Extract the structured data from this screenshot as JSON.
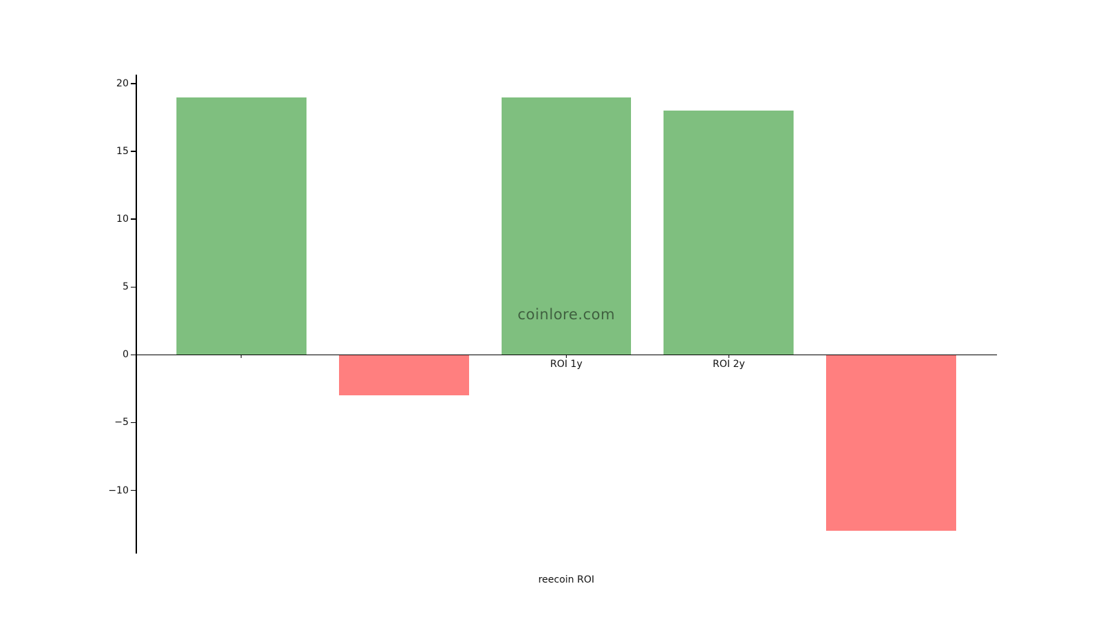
{
  "page": {
    "background": "#ffffff"
  },
  "chart_data": {
    "type": "bar",
    "title": "",
    "xlabel": "reecoin ROI",
    "ylabel": "",
    "watermark": "coinlore.com",
    "categories": [
      "",
      "",
      "ROI 1y",
      "ROI 2y",
      ""
    ],
    "values": [
      19,
      -3,
      19,
      18,
      -13
    ],
    "series": [
      {
        "name": "reecoin ROI",
        "values": [
          19,
          -3,
          19,
          18,
          -13
        ]
      }
    ],
    "bar_colors": {
      "positive": "#7fbf7f",
      "negative": "#ff7f7f"
    },
    "yticks": [
      20,
      15,
      10,
      5,
      0,
      -5,
      -10
    ],
    "ylim": [
      -14.66,
      20.66
    ],
    "xlim": [
      -0.65,
      4.65
    ],
    "bar_width_units": 0.8,
    "grid": false,
    "legend": null,
    "axis_color": "#000000",
    "text_color": "#111111",
    "watermark_color": "rgba(0,0,0,0.5)"
  }
}
